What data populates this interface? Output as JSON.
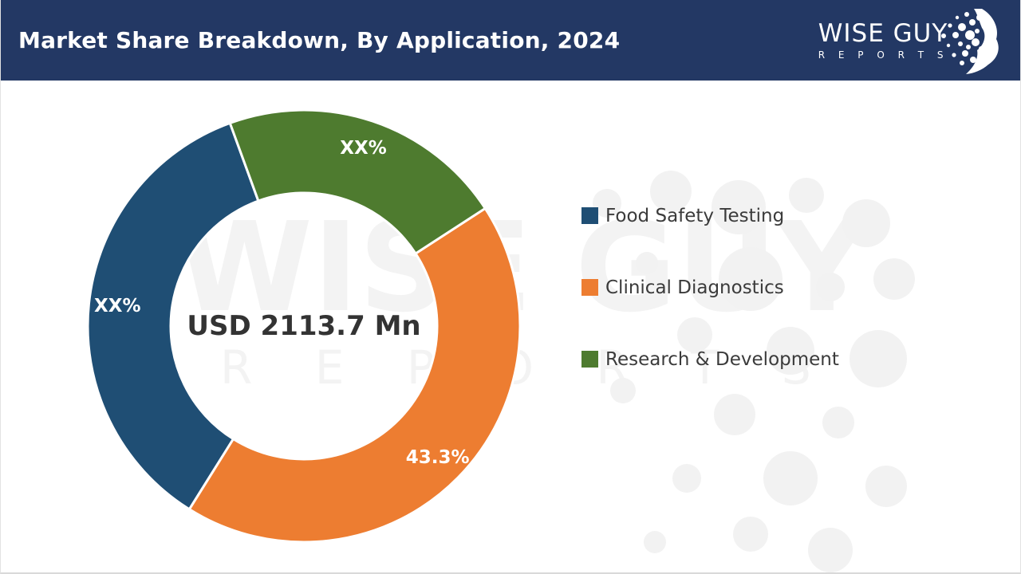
{
  "header": {
    "title": "Market Share Breakdown, By Application, 2024",
    "logo": {
      "name": "WISE GUY",
      "sub": "R E P O R T S"
    }
  },
  "watermark": {
    "big": "WISE GUY",
    "sub": "R E P O R T S"
  },
  "colors": {
    "header_bg": "#233864",
    "blue": "#1F4E74",
    "orange": "#ED7D31",
    "green": "#4E7B2F",
    "center_text": "#333333",
    "watermark": "#F3F3F3"
  },
  "chart_data": {
    "type": "pie",
    "subtype": "donut",
    "title": "Market Share Breakdown, By Application, 2024",
    "center_label": "USD 2113.7 Mn",
    "legend_position": "right",
    "segments": [
      {
        "name": "Food Safety Testing",
        "slug": "food-safety-testing",
        "display_label": "XX%",
        "value_pct_est": 35.6,
        "masked": true,
        "color": "#1F4E74",
        "start_deg": 212,
        "end_deg": 340
      },
      {
        "name": "Clinical Diagnostics",
        "slug": "clinical-diagnostics",
        "display_label": "43.3%",
        "value_pct_est": 43.3,
        "masked": false,
        "color": "#ED7D31",
        "start_deg": 57,
        "end_deg": 212
      },
      {
        "name": "Research & Development",
        "slug": "research-development",
        "display_label": "XX%",
        "value_pct_est": 21.1,
        "masked": true,
        "color": "#4E7B2F",
        "start_deg": -20,
        "end_deg": 57
      }
    ]
  },
  "legend": {
    "items": [
      {
        "label": "Food Safety Testing",
        "color": "#1F4E74"
      },
      {
        "label": "Clinical Diagnostics",
        "color": "#ED7D31"
      },
      {
        "label": "Research & Development",
        "color": "#4E7B2F"
      }
    ]
  }
}
